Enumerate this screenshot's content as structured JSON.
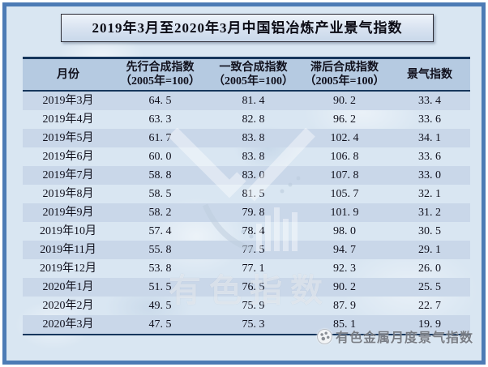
{
  "title": "2019年3月至2020年3月中国铝冶炼产业景气指数",
  "table": {
    "headers": [
      {
        "label": "月份",
        "sub": ""
      },
      {
        "label": "先行合成指数",
        "sub": "（2005年=100）"
      },
      {
        "label": "一致合成指数",
        "sub": "（2005年=100）"
      },
      {
        "label": "滞后合成指数",
        "sub": "（2005年=100）"
      },
      {
        "label": "景气指数",
        "sub": ""
      }
    ]
  },
  "watermark": {
    "logo_text": "有色指数",
    "footer_text": "有色金属月度景气指数"
  },
  "colors": {
    "frame_blue": "#4c7bb5",
    "background_blue": "#d9e6f2",
    "header_bg": "#b5cae1",
    "row_shade": "#c9d7e9",
    "title_box_bg": "#d7e2f0",
    "rule_dark_navy": "#16365c",
    "footer_gray": "#62666e"
  },
  "chart_data": {
    "type": "table",
    "title": "2019年3月至2020年3月中国铝冶炼产业景气指数",
    "columns": [
      "月份",
      "先行合成指数（2005年=100）",
      "一致合成指数（2005年=100）",
      "滞后合成指数（2005年=100）",
      "景气指数"
    ],
    "rows": [
      [
        "2019年3月",
        64.5,
        81.4,
        90.2,
        33.4
      ],
      [
        "2019年4月",
        63.3,
        82.8,
        96.2,
        33.6
      ],
      [
        "2019年5月",
        61.7,
        83.8,
        102.4,
        34.1
      ],
      [
        "2019年6月",
        60.0,
        83.8,
        106.8,
        33.6
      ],
      [
        "2019年7月",
        58.8,
        83.0,
        107.8,
        33.0
      ],
      [
        "2019年8月",
        58.5,
        81.5,
        105.7,
        32.1
      ],
      [
        "2019年9月",
        58.2,
        79.8,
        101.9,
        31.2
      ],
      [
        "2019年10月",
        57.4,
        78.4,
        98.0,
        30.5
      ],
      [
        "2019年11月",
        55.8,
        77.5,
        94.7,
        29.1
      ],
      [
        "2019年12月",
        53.8,
        77.1,
        92.3,
        26.0
      ],
      [
        "2020年1月",
        51.5,
        76.5,
        90.2,
        25.5
      ],
      [
        "2020年2月",
        49.5,
        75.9,
        87.9,
        22.7
      ],
      [
        "2020年3月",
        47.5,
        75.3,
        85.1,
        19.9
      ]
    ]
  }
}
